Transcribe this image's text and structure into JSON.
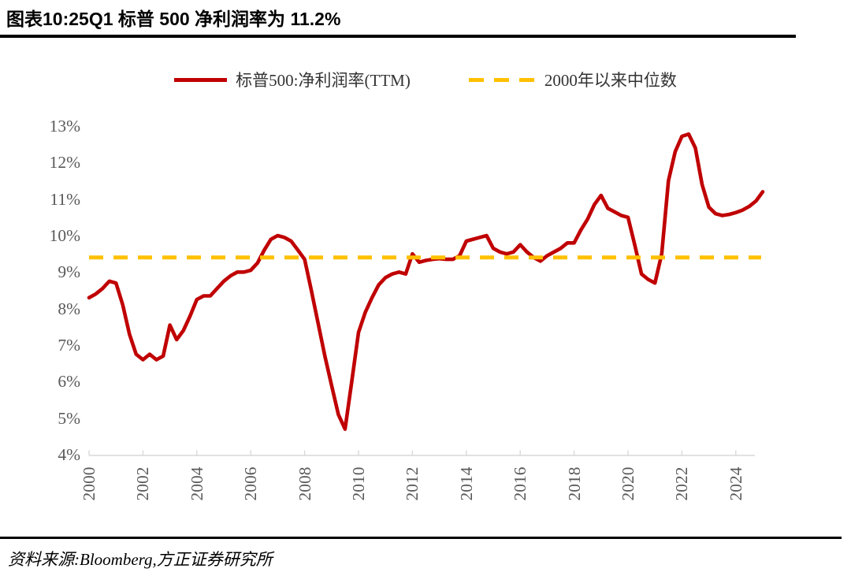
{
  "header": {
    "title": "图表10:25Q1 标普 500 净利润率为 11.2%"
  },
  "legend": [
    {
      "label": "标普500:净利润率(TTM)",
      "color": "#C00000",
      "style": "solid"
    },
    {
      "label": "2000年以来中位数",
      "color": "#FFC000",
      "style": "dashed"
    }
  ],
  "footer": {
    "source": "资料来源:Bloomberg,方正证券研究所"
  },
  "colors": {
    "series": "#C00000",
    "median": "#FFC000",
    "axis": "#D9D9D9",
    "tick_label": "#595959"
  },
  "chart_data": {
    "type": "line",
    "title": "25Q1 标普 500 净利润率为 11.2%",
    "unit": "%",
    "frequency": "quarterly",
    "x_start": "2000Q1",
    "x_end": "2025Q1",
    "ylim": [
      4,
      13
    ],
    "y_ticks": [
      13,
      12,
      11,
      10,
      9,
      8,
      7,
      6,
      5,
      4
    ],
    "y_tick_suffix": "%",
    "x_ticks": [
      2000,
      2002,
      2004,
      2006,
      2008,
      2010,
      2012,
      2014,
      2016,
      2018,
      2020,
      2022,
      2024
    ],
    "grid": false,
    "legend_position": "top",
    "series": [
      {
        "name": "标普500:净利润率(TTM)",
        "type": "line",
        "style": "solid",
        "color": "#C00000",
        "values": [
          8.3,
          8.4,
          8.55,
          8.75,
          8.7,
          8.1,
          7.3,
          6.75,
          6.6,
          6.75,
          6.6,
          6.7,
          7.55,
          7.15,
          7.4,
          7.8,
          8.25,
          8.35,
          8.35,
          8.55,
          8.75,
          8.9,
          9.0,
          9.0,
          9.05,
          9.25,
          9.6,
          9.9,
          10.0,
          9.95,
          9.85,
          9.6,
          9.35,
          8.5,
          7.6,
          6.7,
          5.9,
          5.1,
          4.7,
          6.0,
          7.35,
          7.9,
          8.3,
          8.65,
          8.85,
          8.95,
          9.0,
          8.95,
          9.5,
          9.27,
          9.32,
          9.35,
          9.37,
          9.35,
          9.35,
          9.45,
          9.85,
          9.9,
          9.95,
          10.0,
          9.65,
          9.55,
          9.5,
          9.55,
          9.75,
          9.55,
          9.4,
          9.3,
          9.45,
          9.55,
          9.65,
          9.8,
          9.8,
          10.15,
          10.45,
          10.85,
          11.1,
          10.75,
          10.65,
          10.55,
          10.5,
          9.75,
          8.95,
          8.8,
          8.7,
          9.5,
          11.5,
          12.3,
          12.72,
          12.78,
          12.4,
          11.4,
          10.78,
          10.6,
          10.55,
          10.58,
          10.63,
          10.7,
          10.8,
          10.95,
          11.2
        ]
      },
      {
        "name": "2000年以来中位数",
        "type": "hline",
        "style": "dashed",
        "color": "#FFC000",
        "value": 9.4
      }
    ]
  }
}
